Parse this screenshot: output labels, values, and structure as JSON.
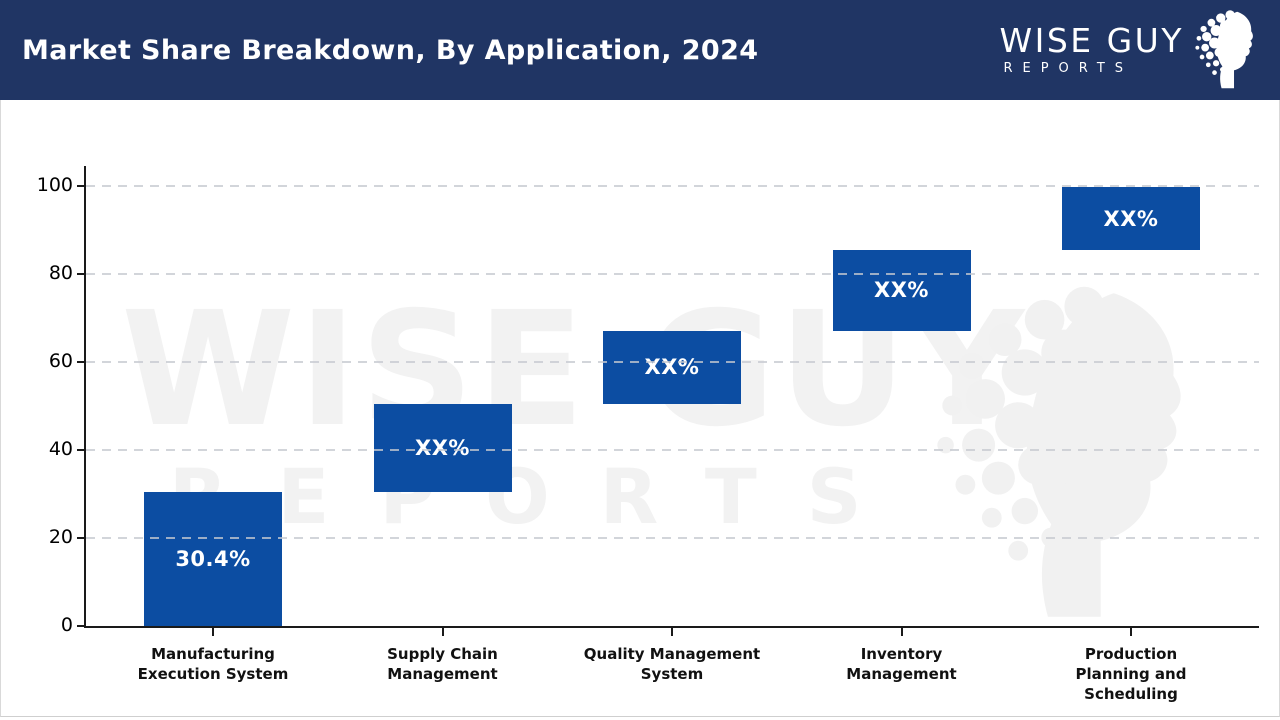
{
  "header": {
    "title": "Market Share Breakdown, By Application, 2024",
    "logo": {
      "name": "WISE GUY",
      "subtitle": "REPORTS"
    }
  },
  "watermark": {
    "line1": "WISE GUY",
    "line2": "REPORTS"
  },
  "chart_data": {
    "type": "bar",
    "subtype": "waterfall",
    "title": "Market Share Breakdown, By Application, 2024",
    "categories": [
      "Manufacturing\nExecution System",
      "Supply Chain\nManagement",
      "Quality Management\nSystem",
      "Inventory\nManagement",
      "Production\nPlanning and\nScheduling"
    ],
    "segments": [
      {
        "start": 0,
        "end": 30.4,
        "label": "30.4%"
      },
      {
        "start": 30.4,
        "end": 50.5,
        "label": "XX%"
      },
      {
        "start": 50.5,
        "end": 67.1,
        "label": "XX%"
      },
      {
        "start": 67.1,
        "end": 85.4,
        "label": "XX%"
      },
      {
        "start": 85.4,
        "end": 99.8,
        "label": "XX%"
      }
    ],
    "yticks": [
      0,
      20,
      40,
      60,
      80,
      100
    ],
    "ylim": [
      0,
      104
    ],
    "xlabel": "",
    "ylabel": "",
    "grid": "horizontal-dashed",
    "legend": "none",
    "colors": {
      "bar": "#0c4da2",
      "bar_label": "#ffffff",
      "axis": "#1a1a1a",
      "grid": "#d6d6d6",
      "header_bg": "#203564",
      "watermark": "#f2f2f2"
    }
  }
}
